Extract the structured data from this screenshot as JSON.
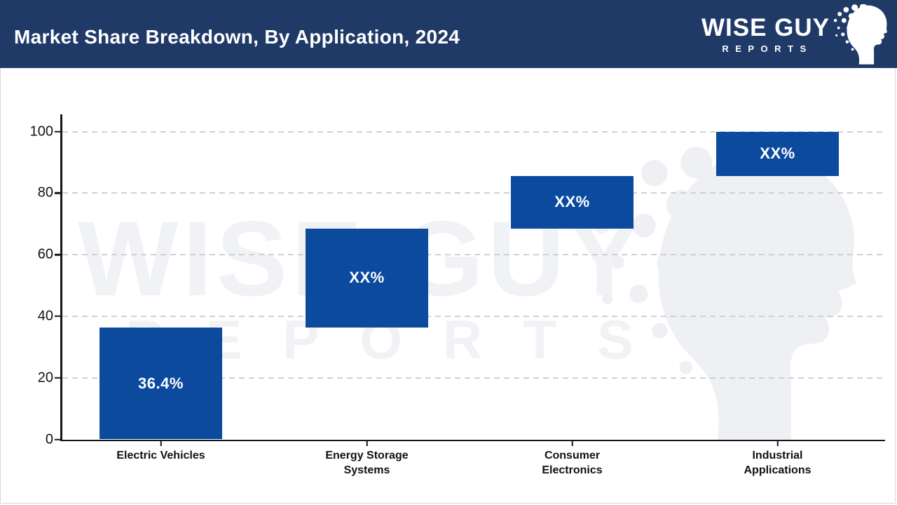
{
  "header": {
    "title": "Market Share Breakdown, By Application, 2024",
    "logo": {
      "line1": "WISE GUY",
      "line2": "REPORTS"
    }
  },
  "watermark": {
    "line1": "WISE GUY",
    "line2": "REPORTS"
  },
  "chart_data": {
    "type": "bar",
    "subtype": "waterfall",
    "title": "Market Share Breakdown, By Application, 2024",
    "categories": [
      "Electric Vehicles",
      "Energy Storage\nSystems",
      "Consumer\nElectronics",
      "Industrial\nApplications"
    ],
    "segments": [
      {
        "label": "36.4%",
        "start": 0,
        "end": 36.4
      },
      {
        "label": "XX%",
        "start": 36.4,
        "end": 68.5
      },
      {
        "label": "XX%",
        "start": 68.5,
        "end": 85.5
      },
      {
        "label": "XX%",
        "start": 85.5,
        "end": 100
      }
    ],
    "xlabel": "",
    "ylabel": "",
    "ylim": [
      0,
      100
    ],
    "yticks": [
      0,
      20,
      40,
      60,
      80,
      100
    ],
    "grid": "horizontal-dashed",
    "legend": "none",
    "bar_color": "#0c4a9e",
    "bar_label_color": "#ffffff"
  },
  "colors": {
    "header_bg": "#203a68",
    "bar": "#0c4a9e",
    "grid": "#cdd0d4",
    "axis": "#161616",
    "watermark": "#f1f2f5",
    "card_border": "#d8d8d8"
  }
}
